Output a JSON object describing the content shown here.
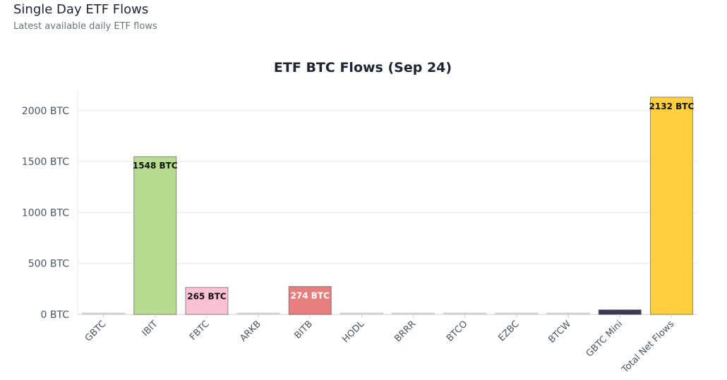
{
  "header": {
    "title": "Single Day ETF Flows",
    "subtitle": "Latest available daily ETF flows"
  },
  "chart_data": {
    "type": "bar",
    "title": "ETF BTC Flows (Sep 24)",
    "xlabel": "",
    "ylabel": "",
    "unit": "BTC",
    "ylim": [
      0,
      2200
    ],
    "yticks": [
      0,
      500,
      1000,
      1500,
      2000
    ],
    "ytick_labels": [
      "0 BTC",
      "500 BTC",
      "1000 BTC",
      "1500 BTC",
      "2000 BTC"
    ],
    "grid": true,
    "categories": [
      "GBTC",
      "IBIT",
      "FBTC",
      "ARKB",
      "BITB",
      "HODL",
      "BRRR",
      "BTCO",
      "EZBC",
      "BTCW",
      "GBTC Mini",
      "Total Net Flows"
    ],
    "values": [
      0,
      1548,
      265,
      0,
      274,
      0,
      0,
      0,
      0,
      0,
      45,
      2132
    ],
    "data_labels": [
      "",
      "1548 BTC",
      "265 BTC",
      "",
      "274 BTC",
      "",
      "",
      "",
      "",
      "",
      "",
      "2132 BTC"
    ],
    "colors": [
      "#d9d9e0",
      "#b8dc8f",
      "#f8c1d4",
      "#d9d9e0",
      "#e87f7f",
      "#d9d9e0",
      "#d9d9e0",
      "#d9d9e0",
      "#d9d9e0",
      "#d9d9e0",
      "#3d3a55",
      "#fecf3f"
    ],
    "label_colors": [
      "#111111",
      "#111111",
      "#111111",
      "#111111",
      "#ffffff",
      "#111111",
      "#111111",
      "#111111",
      "#111111",
      "#111111",
      "#111111",
      "#111111"
    ]
  }
}
